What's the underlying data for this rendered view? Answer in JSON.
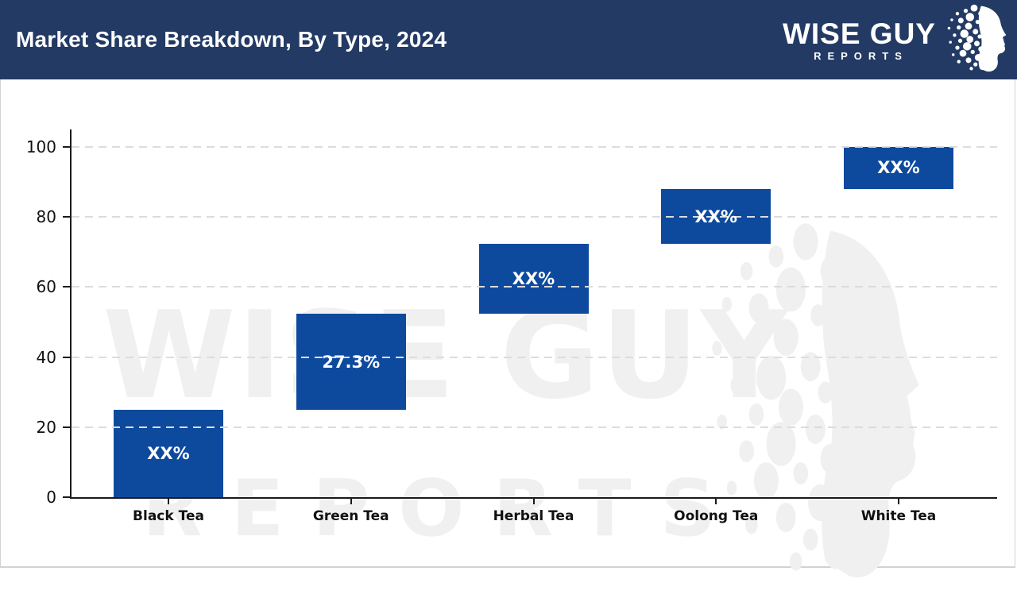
{
  "header": {
    "title": "Market Share Breakdown, By Type, 2024",
    "background_color": "#233a64",
    "logo": {
      "line1": "WISE GUY",
      "line2": "REPORTS"
    }
  },
  "watermark": {
    "line1": "WISE GUY",
    "line2": "REPORTS"
  },
  "chart_data": {
    "type": "bar",
    "subtype": "waterfall",
    "title": "Market Share Breakdown, By Type, 2024",
    "categories": [
      "Black Tea",
      "Green Tea",
      "Herbal Tea",
      "Oolong Tea",
      "White Tea"
    ],
    "segments": [
      {
        "category": "Black Tea",
        "start": 0,
        "end": 25,
        "value_label": "XX%"
      },
      {
        "category": "Green Tea",
        "start": 25,
        "end": 52.3,
        "value_label": "27.3%"
      },
      {
        "category": "Herbal Tea",
        "start": 52.3,
        "end": 72.3,
        "value_label": "XX%"
      },
      {
        "category": "Oolong Tea",
        "start": 72.3,
        "end": 88,
        "value_label": "XX%"
      },
      {
        "category": "White Tea",
        "start": 88,
        "end": 100,
        "value_label": "XX%"
      }
    ],
    "y_ticks": [
      0,
      20,
      40,
      60,
      80,
      100
    ],
    "ylim": [
      0,
      105
    ],
    "xlabel": "",
    "ylabel": "",
    "grid": "horizontal-dashed",
    "legend": "none",
    "bar_color": "#0d4a9e",
    "bar_label_color": "#ffffff",
    "gridline_color": "#dcdcdc",
    "axis_color": "#1a1a1a"
  }
}
